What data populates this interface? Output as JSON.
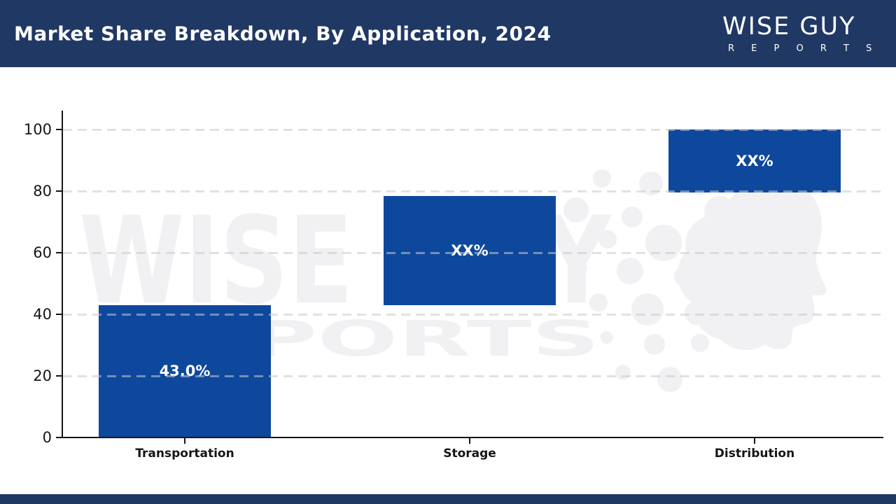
{
  "header": {
    "title": "Market Share Breakdown, By Application, 2024",
    "bg_color": "#203864",
    "logo": {
      "line1": "WISE GUY",
      "line2": "R E P O R T S"
    }
  },
  "watermark": {
    "line1": "WISE GUY",
    "line2": "REPORTS"
  },
  "chart_data": {
    "type": "bar",
    "subtype": "waterfall",
    "title": "Market Share Breakdown, By Application, 2024",
    "categories": [
      "Transportation",
      "Storage",
      "Distribution"
    ],
    "segments": [
      {
        "category": "Transportation",
        "start": 0,
        "end": 43,
        "label": "43.0%"
      },
      {
        "category": "Storage",
        "start": 43,
        "end": 78.5,
        "label": "XX%"
      },
      {
        "category": "Distribution",
        "start": 79.5,
        "end": 100,
        "label": "XX%"
      }
    ],
    "ylim": [
      0,
      100
    ],
    "y_ticks": [
      "0",
      "20",
      "40",
      "60",
      "80",
      "100"
    ],
    "grid": "horizontal-dashed",
    "legend": "none",
    "bar_color": "#0e489c",
    "bar_label_color": "#ffffff",
    "axis_color": "#161616",
    "gridline_color": "#c9c9c9",
    "watermark_color": "#f1f1f3"
  },
  "footer": {
    "bg_color": "#203864"
  }
}
